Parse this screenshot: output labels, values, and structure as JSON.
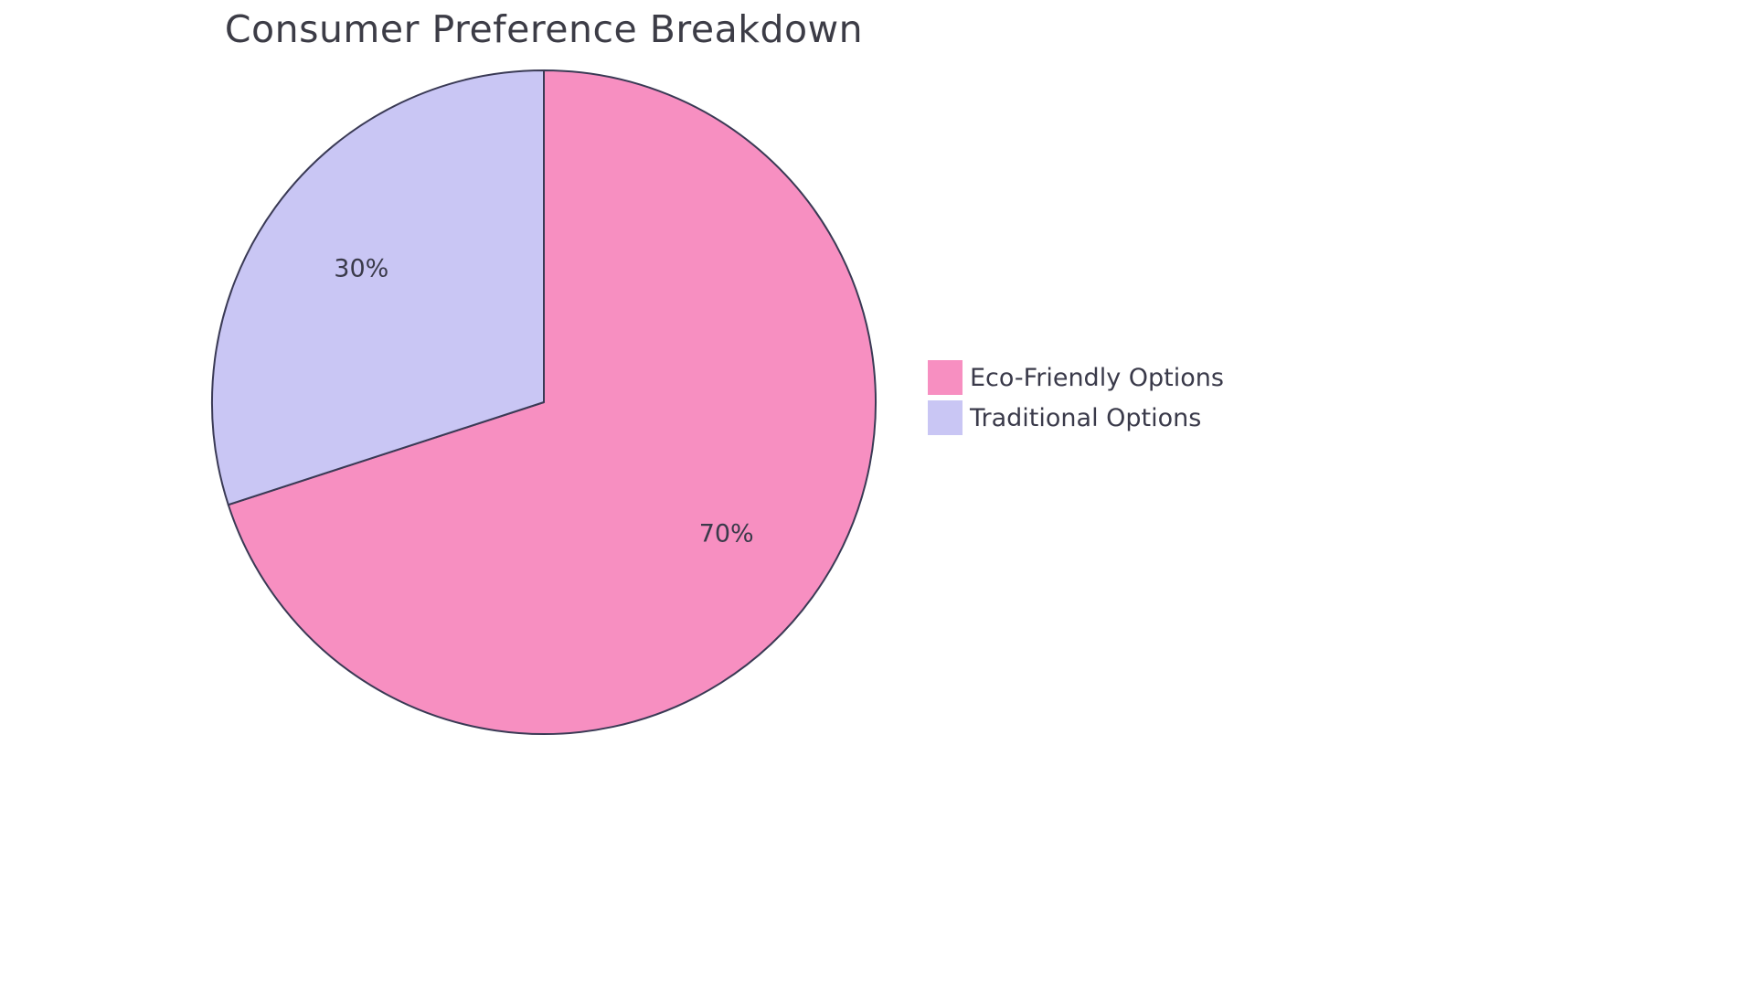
{
  "page": {
    "background": "#FFFFFF"
  },
  "chart_data": {
    "type": "pie",
    "title": "Consumer Preference Breakdown",
    "slices": [
      {
        "label": "Eco-Friendly Options",
        "value": 70,
        "display": "70%",
        "color": "#F78FC1"
      },
      {
        "label": "Traditional Options",
        "value": 30,
        "display": "30%",
        "color": "#C9C6F4"
      }
    ],
    "start_angle_deg": 0,
    "direction": "clockwise",
    "stroke_color": "#3A3A55",
    "stroke_width": 2,
    "label_color": "#3A3A4A",
    "label_radius_fraction": 0.68,
    "legend_position": "right",
    "grid": false
  }
}
